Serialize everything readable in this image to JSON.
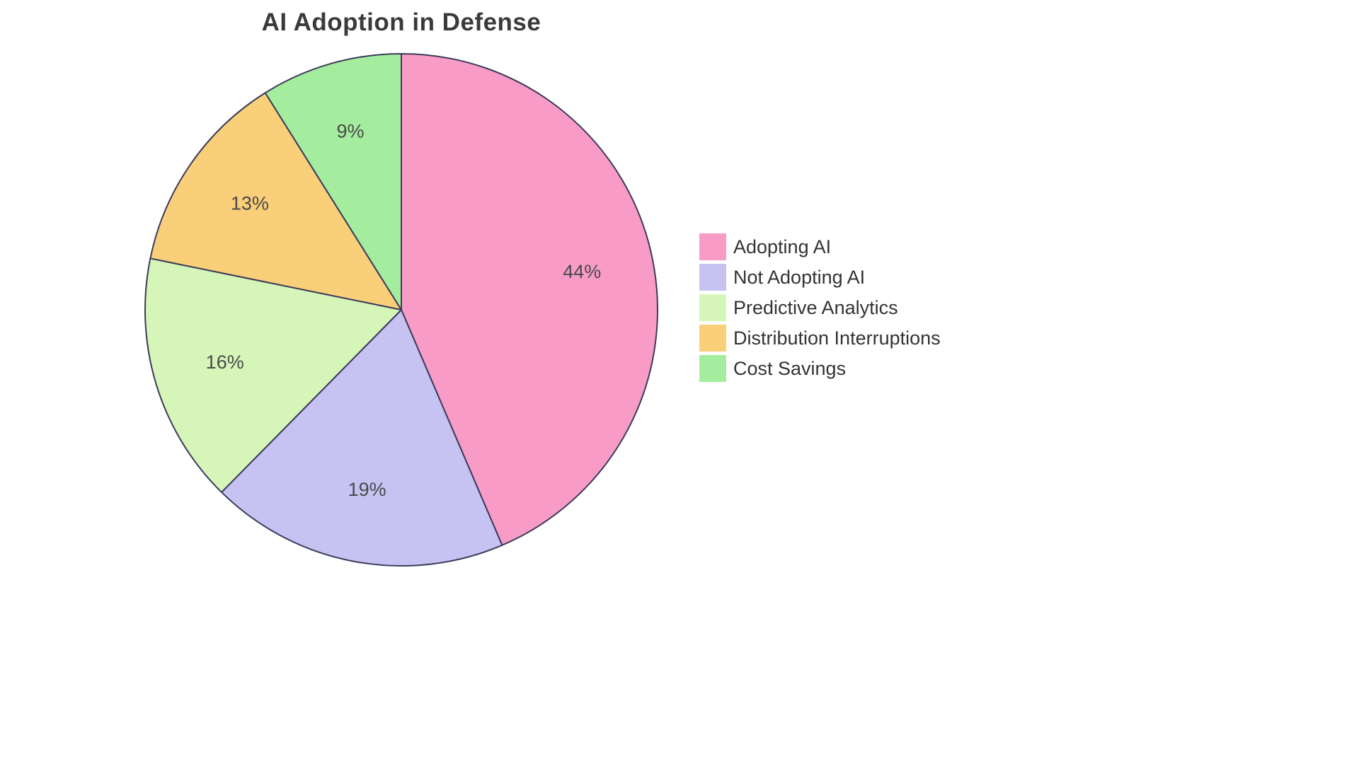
{
  "chart_data": {
    "type": "pie",
    "title": "AI Adoption in Defense",
    "legend_position": "right",
    "start_angle_deg": -90,
    "direction": "clockwise",
    "stroke_color": "#3b3b5c",
    "label_color": "#4a4a4a",
    "slices": [
      {
        "label": "Adopting AI",
        "value": 44,
        "pct_label": "44%",
        "color": "#f99bc7"
      },
      {
        "label": "Not Adopting AI",
        "value": 19,
        "pct_label": "19%",
        "color": "#c6c2f2"
      },
      {
        "label": "Predictive Analytics",
        "value": 16,
        "pct_label": "16%",
        "color": "#d6f5b8"
      },
      {
        "label": "Distribution Interruptions",
        "value": 13,
        "pct_label": "13%",
        "color": "#f9cf79"
      },
      {
        "label": "Cost Savings",
        "value": 9,
        "pct_label": "9%",
        "color": "#a5ed9e"
      }
    ]
  }
}
